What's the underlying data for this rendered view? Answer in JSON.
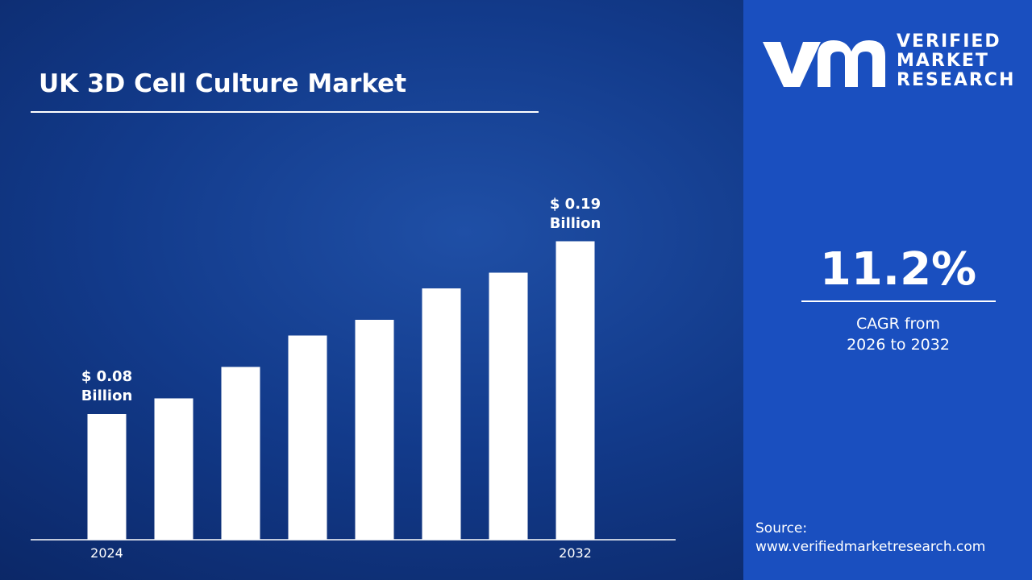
{
  "chart_data": {
    "type": "bar",
    "title": "UK 3D Cell Culture Market",
    "categories": [
      "2024",
      null,
      null,
      null,
      null,
      null,
      null,
      "2032"
    ],
    "values": [
      0.08,
      0.09,
      0.11,
      0.13,
      0.14,
      0.16,
      0.17,
      0.19
    ],
    "value_labels": [
      "$ 0.08 Billion",
      null,
      null,
      null,
      null,
      null,
      null,
      "$ 0.19 Billion"
    ],
    "color": "#ffffff",
    "ylim": [
      0,
      0.2
    ]
  },
  "sidebar": {
    "brand": [
      "VERIFIED",
      "MARKET",
      "RESEARCH"
    ],
    "cagr_value": "11.2%",
    "cagr_label": "CAGR from",
    "cagr_period": "2026 to 2032",
    "source_label": "Source:",
    "source_url": "www.verifiedmarketresearch.com"
  }
}
